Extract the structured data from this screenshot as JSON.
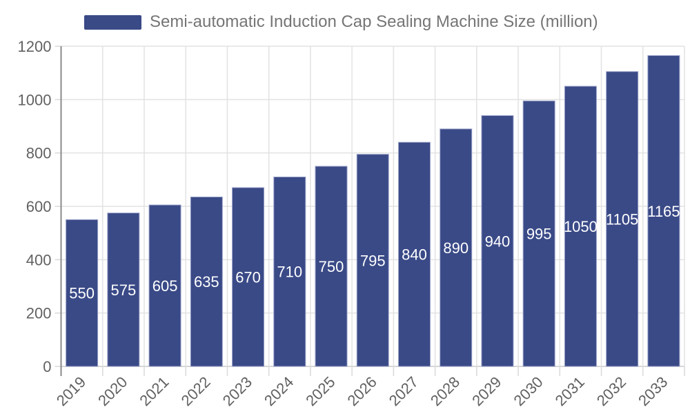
{
  "legend": {
    "label": "Semi-automatic Induction Cap Sealing Machine Size (million)"
  },
  "chart_data": {
    "type": "bar",
    "title": "Semi-automatic Induction Cap Sealing Machine Size (million)",
    "categories": [
      "2019",
      "2020",
      "2021",
      "2022",
      "2023",
      "2024",
      "2025",
      "2026",
      "2027",
      "2028",
      "2029",
      "2030",
      "2031",
      "2032",
      "2033"
    ],
    "values": [
      550,
      575,
      605,
      635,
      670,
      710,
      750,
      795,
      840,
      890,
      940,
      995,
      1050,
      1105,
      1165
    ],
    "xlabel": "",
    "ylabel": "",
    "ylim": [
      0,
      1200
    ],
    "yticks": [
      0,
      200,
      400,
      600,
      800,
      1000,
      1200
    ],
    "grid": true,
    "legend_position": "top",
    "bar_labels_inside": true
  },
  "colors": {
    "bar_fill": "#3A4A87",
    "bar_edge": "#9AA2C8",
    "grid_line": "#E2E2E2",
    "axis_y_line": "#8A8A8A",
    "axis_x_line": "#C9C9C9",
    "tick_mark": "#D9D9D9",
    "tick_label": "#616161",
    "title_text": "#757575",
    "bar_value_label": "#FFFFFF",
    "background": "#FFFFFF"
  }
}
